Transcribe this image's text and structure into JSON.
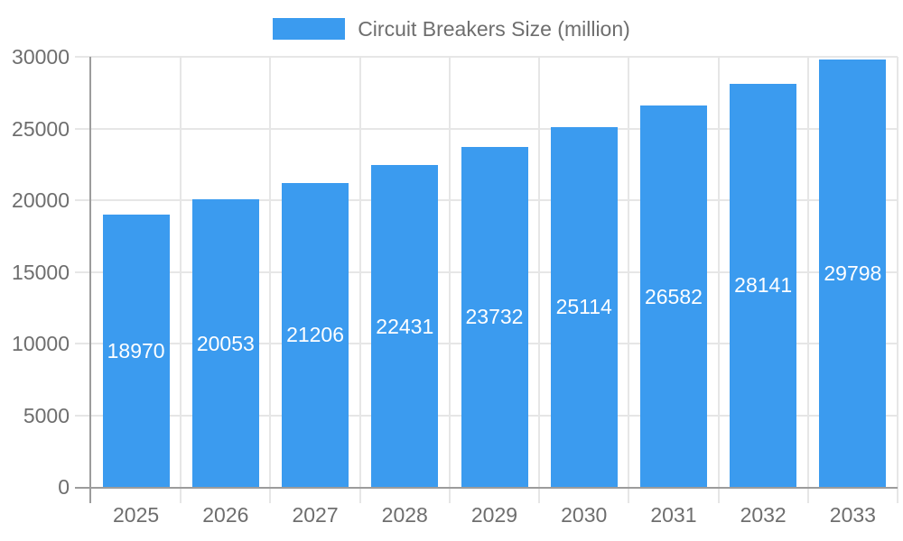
{
  "chart_data": {
    "type": "bar",
    "title": "",
    "legend_position": "top",
    "categories": [
      "2025",
      "2026",
      "2027",
      "2028",
      "2029",
      "2030",
      "2031",
      "2032",
      "2033"
    ],
    "series": [
      {
        "name": "Circuit Breakers Size (million)",
        "values": [
          18970,
          20053,
          21206,
          22431,
          23732,
          25114,
          26582,
          28141,
          29798
        ]
      }
    ],
    "xlabel": "",
    "ylabel": "",
    "ylim": [
      0,
      30000
    ],
    "yticks": [
      0,
      5000,
      10000,
      15000,
      20000,
      25000,
      30000
    ],
    "grid": true,
    "value_labels": "inside-vertical-center",
    "colors": {
      "bar": "#3B9BEF",
      "grid": "#E6E6E6",
      "axis": "#9C9C9C",
      "tick_text": "#6E6E6E",
      "legend_text": "#6E6E6E",
      "value_label": "#FFFFFF",
      "background": "#FFFFFF"
    }
  }
}
